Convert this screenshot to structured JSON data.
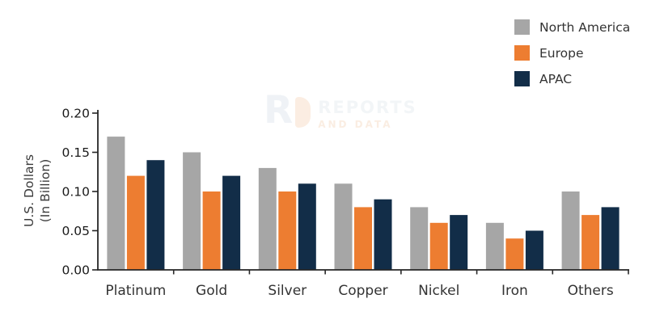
{
  "watermark": {
    "logo_letter": "R",
    "line1": "REPORTS",
    "line2": "AND DATA"
  },
  "chart_data": {
    "type": "bar",
    "categories": [
      "Platinum",
      "Gold",
      "Silver",
      "Copper",
      "Nickel",
      "Iron",
      "Others"
    ],
    "series": [
      {
        "name": "North America",
        "color": "#a6a6a6",
        "values": [
          0.17,
          0.15,
          0.13,
          0.11,
          0.08,
          0.06,
          0.1
        ]
      },
      {
        "name": "Europe",
        "color": "#ed7d31",
        "values": [
          0.12,
          0.1,
          0.1,
          0.08,
          0.06,
          0.04,
          0.07
        ]
      },
      {
        "name": "APAC",
        "color": "#122d48",
        "values": [
          0.14,
          0.12,
          0.11,
          0.09,
          0.07,
          0.05,
          0.08
        ]
      }
    ],
    "ylabel_lines": [
      "U.S. Dollars",
      "(In Billion)"
    ],
    "ytick_values": [
      0,
      0.05,
      0.1,
      0.15,
      0.2
    ],
    "ytick_labels": [
      "0.00",
      "0.05",
      "0.10",
      "0.15",
      "0.20"
    ],
    "ylim": [
      0,
      0.2
    ],
    "grid": false,
    "legend_position": "top-right"
  }
}
